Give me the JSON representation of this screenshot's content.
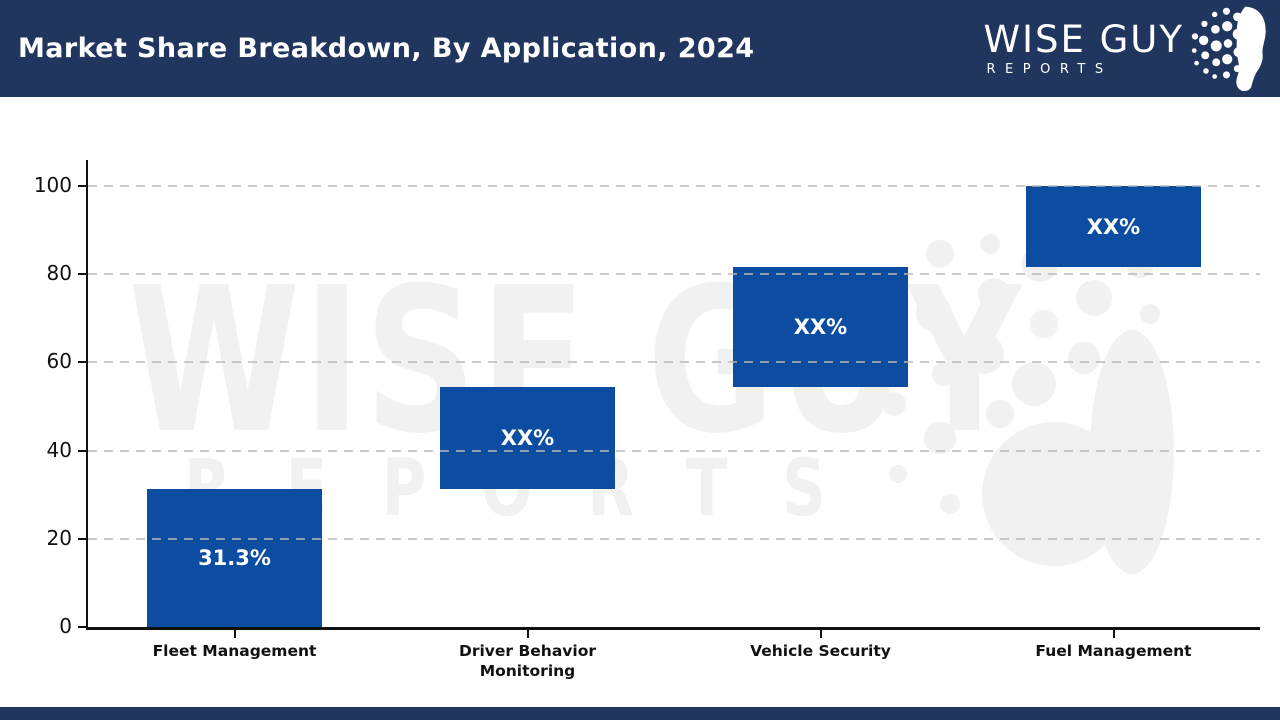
{
  "header": {
    "title": "Market Share Breakdown, By Application, 2024",
    "logo": {
      "wordmark": "WISE GUY",
      "subtext": "REPORTS"
    }
  },
  "watermark": {
    "line1": "WISE GUY",
    "line2": "REPORTS"
  },
  "chart_data": {
    "type": "bar",
    "variant": "waterfall",
    "title": "Market Share Breakdown, By Application, 2024",
    "categories": [
      "Fleet Management",
      "Driver Behavior Monitoring",
      "Vehicle Security",
      "Fuel Management"
    ],
    "segments": [
      {
        "category": "Fleet Management",
        "start": 0,
        "end": 31.3,
        "label": "31.3%"
      },
      {
        "category": "Driver Behavior Monitoring",
        "start": 31.3,
        "end": 54.5,
        "label": "XX%"
      },
      {
        "category": "Vehicle Security",
        "start": 54.5,
        "end": 81.6,
        "label": "XX%"
      },
      {
        "category": "Fuel Management",
        "start": 81.6,
        "end": 100,
        "label": "XX%"
      }
    ],
    "ylim": [
      0,
      100
    ],
    "yticks": [
      0,
      20,
      40,
      60,
      80,
      100
    ],
    "grid": "horizontal-dashed",
    "legend": "none",
    "colors": {
      "bar": "#0d4da1",
      "bar_label": "#ffffff",
      "axis": "#111111",
      "gridline": "#c9c9c9",
      "header_bg": "#21365f",
      "watermark": "#f1f1f1"
    }
  }
}
